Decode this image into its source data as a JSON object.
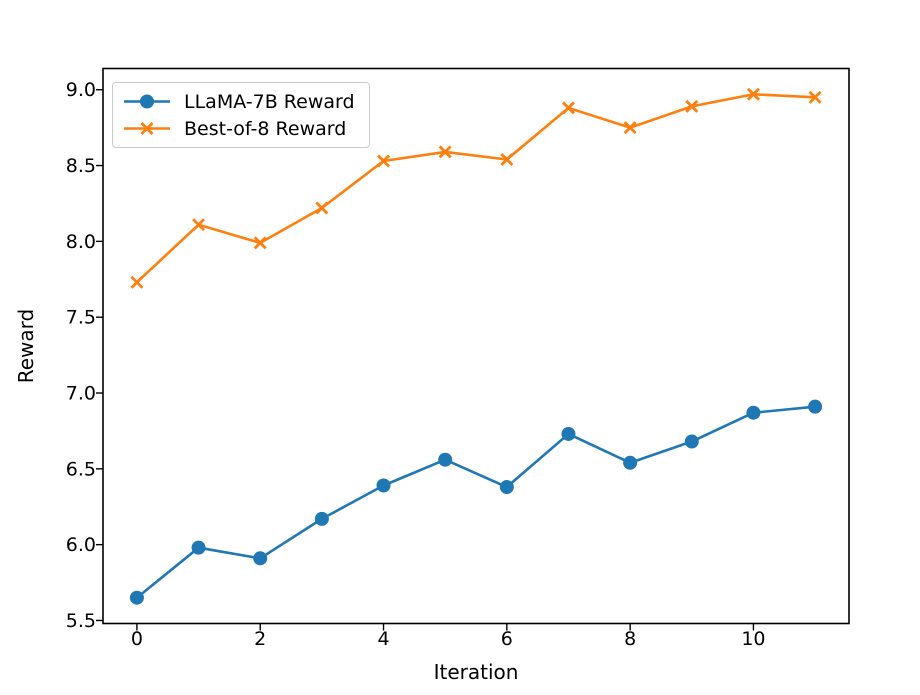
{
  "chart_data": {
    "type": "line",
    "title": "",
    "xlabel": "Iteration",
    "ylabel": "Reward",
    "x": [
      0,
      1,
      2,
      3,
      4,
      5,
      6,
      7,
      8,
      9,
      10,
      11
    ],
    "series": [
      {
        "name": "LLaMA-7B Reward",
        "color": "#1f77b4",
        "marker": "circle",
        "values": [
          5.65,
          5.98,
          5.91,
          6.17,
          6.39,
          6.56,
          6.38,
          6.73,
          6.54,
          6.68,
          6.87,
          6.91
        ]
      },
      {
        "name": "Best-of-8 Reward",
        "color": "#ff7f0e",
        "marker": "x",
        "values": [
          7.73,
          8.11,
          7.99,
          8.22,
          8.53,
          8.59,
          8.54,
          8.88,
          8.75,
          8.89,
          8.97,
          8.95
        ]
      }
    ],
    "xticks": [
      0,
      2,
      4,
      6,
      8,
      10
    ],
    "yticks": [
      5.5,
      6.0,
      6.5,
      7.0,
      7.5,
      8.0,
      8.5,
      9.0
    ],
    "xlim": [
      -0.55,
      11.55
    ],
    "ylim": [
      5.48,
      9.14
    ],
    "grid": false,
    "legend_position": "upper-left",
    "axis_color": "#000000",
    "background_color": "#ffffff"
  }
}
